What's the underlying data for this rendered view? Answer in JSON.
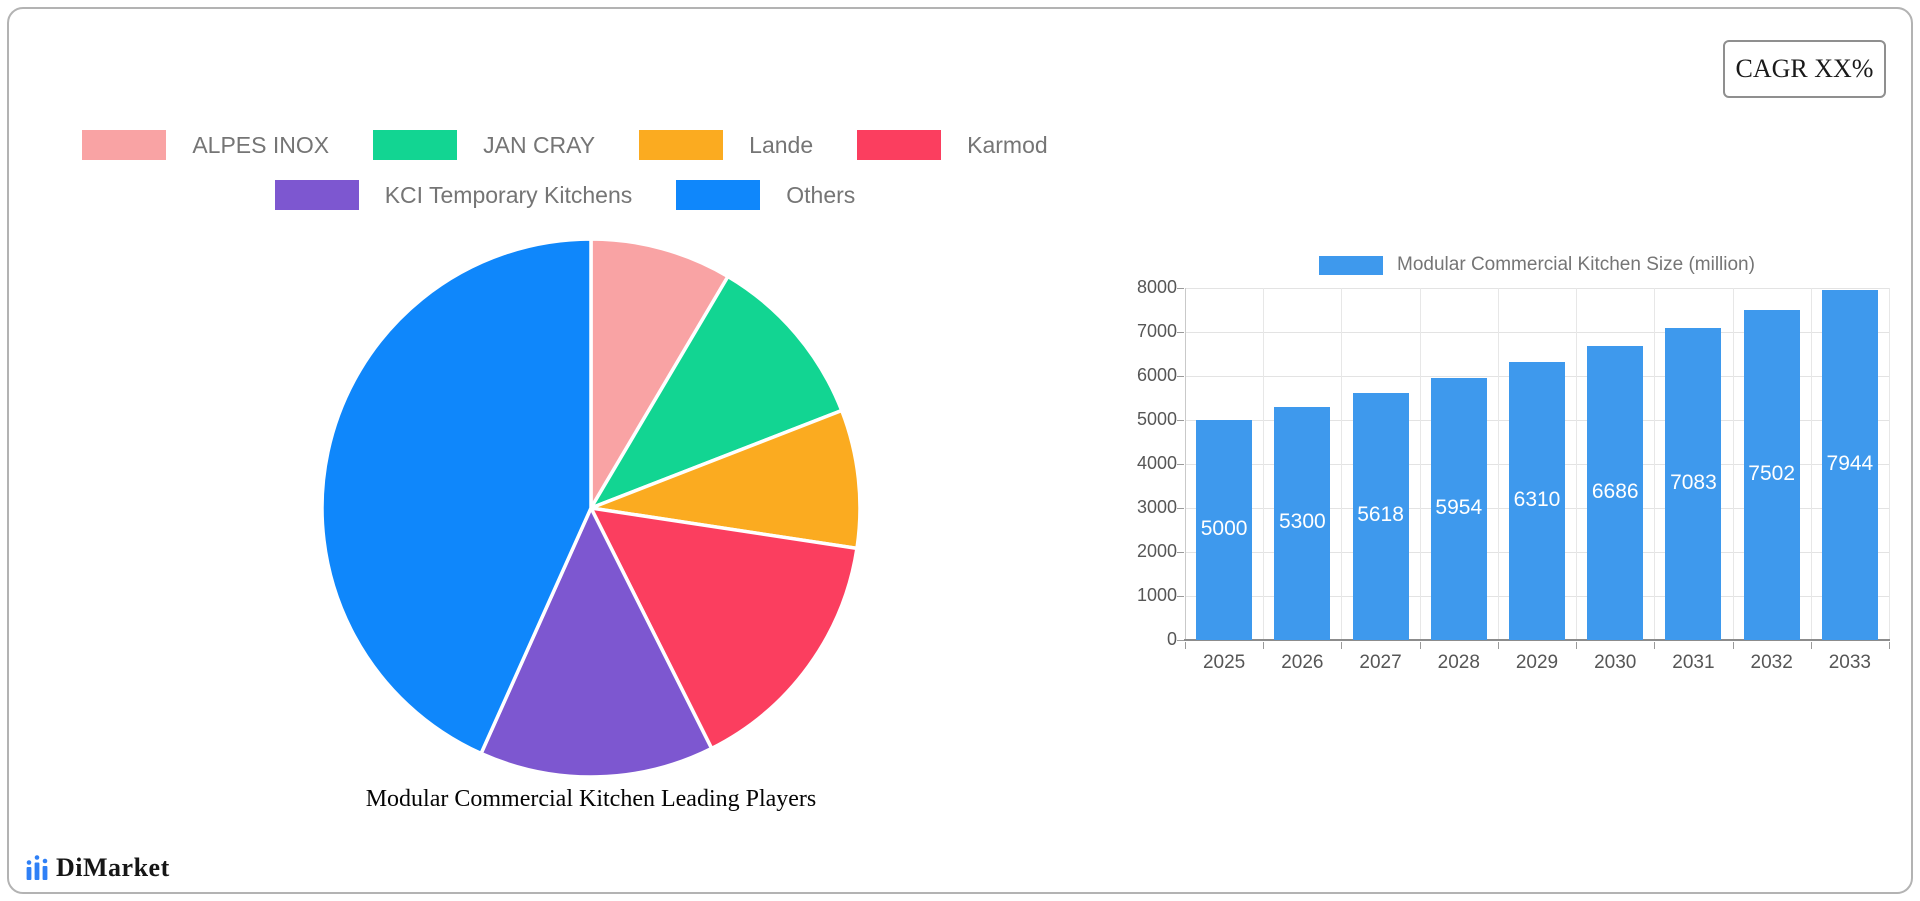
{
  "cagr_label": "CAGR XX%",
  "logo": {
    "text": "DiMarket",
    "icon_color": "#2f80f6"
  },
  "colors": {
    "frame_border": "#b3b3b3",
    "legend_text": "#757575",
    "axis_text": "#565656",
    "gridline": "#e3e3e3",
    "bar_value_text": "#ffffff"
  },
  "chart_data": [
    {
      "type": "pie",
      "title": "Modular Commercial Kitchen Leading Players",
      "labels": [
        "ALPES INOX",
        "JAN CRAY",
        "Lande",
        "Karmod",
        "KCI Temporary Kitchens",
        "Others"
      ],
      "values": [
        8.5,
        10.6,
        8.3,
        15.2,
        14.1,
        43.3
      ],
      "unit": "percent-of-whole (estimated from slice angles, no numeric labels shown)",
      "colors": [
        "#f9a3a4",
        "#12d592",
        "#fbab20",
        "#fb3e5f",
        "#7d57d0",
        "#0f87fb"
      ],
      "start_angle_deg": -90,
      "direction": "clockwise",
      "slice_border_color": "#ffffff",
      "legend_position": "top",
      "legend_rows": [
        4,
        2
      ]
    },
    {
      "type": "bar",
      "categories": [
        "2025",
        "2026",
        "2027",
        "2028",
        "2029",
        "2030",
        "2031",
        "2032",
        "2033"
      ],
      "series": [
        {
          "name": "Modular Commercial Kitchen Size (million)",
          "values": [
            5000,
            5300,
            5618,
            5954,
            6310,
            6686,
            7083,
            7502,
            7944
          ],
          "color": "#3e99ed"
        }
      ],
      "ylim": [
        0,
        8000
      ],
      "yticks": [
        0,
        1000,
        2000,
        3000,
        4000,
        5000,
        6000,
        7000,
        8000
      ],
      "grid": true,
      "legend_position": "top",
      "value_labels": "white, centered inside bars"
    }
  ]
}
